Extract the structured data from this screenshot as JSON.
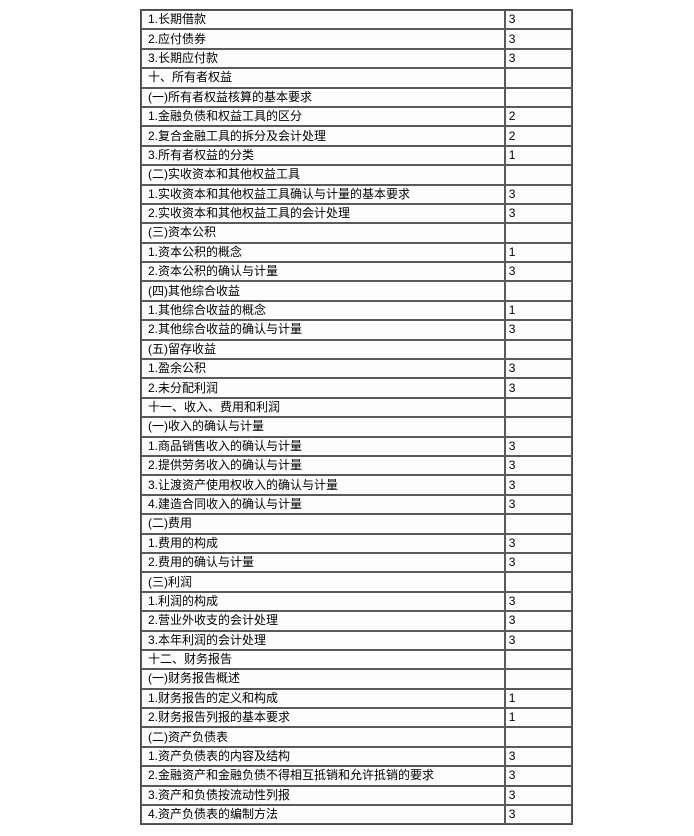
{
  "table": {
    "name": "accounting-syllabus-table",
    "columns": [
      {
        "key": "text",
        "label": ""
      },
      {
        "key": "value",
        "label": ""
      }
    ]
  },
  "colors": {
    "page_background": "#ffffff",
    "cell_background": "#fdfdfd",
    "border": "#5a5a5a",
    "text": "#000000"
  },
  "rows": [
    {
      "type": "item",
      "text": "1.长期借款",
      "value": "3"
    },
    {
      "type": "item",
      "text": "2.应付债券",
      "value": "3"
    },
    {
      "type": "item",
      "text": "3.长期应付款",
      "value": "3"
    },
    {
      "type": "chapter",
      "text": "十、所有者权益",
      "value": ""
    },
    {
      "type": "section",
      "text": "(一)所有者权益核算的基本要求",
      "value": ""
    },
    {
      "type": "item",
      "text": "1.金融负债和权益工具的区分",
      "value": "2"
    },
    {
      "type": "item",
      "text": "2.复合金融工具的拆分及会计处理",
      "value": "2"
    },
    {
      "type": "item",
      "text": "3.所有者权益的分类",
      "value": "1"
    },
    {
      "type": "section",
      "text": "(二)实收资本和其他权益工具",
      "value": ""
    },
    {
      "type": "item",
      "text": "1.实收资本和其他权益工具确认与计量的基本要求",
      "value": "3"
    },
    {
      "type": "item",
      "text": "2.实收资本和其他权益工具的会计处理",
      "value": "3"
    },
    {
      "type": "section",
      "text": "(三)资本公积",
      "value": ""
    },
    {
      "type": "item",
      "text": "1.资本公积的概念",
      "value": "1"
    },
    {
      "type": "item",
      "text": "2.资本公积的确认与计量",
      "value": "3"
    },
    {
      "type": "section",
      "text": "(四)其他综合收益",
      "value": ""
    },
    {
      "type": "item",
      "text": "1.其他综合收益的概念",
      "value": "1"
    },
    {
      "type": "item",
      "text": "2.其他综合收益的确认与计量",
      "value": "3"
    },
    {
      "type": "section",
      "text": "(五)留存收益",
      "value": ""
    },
    {
      "type": "item",
      "text": "1.盈余公积",
      "value": "3"
    },
    {
      "type": "item",
      "text": "2.未分配利润",
      "value": "3"
    },
    {
      "type": "chapter",
      "text": "十一、收入、费用和利润",
      "value": ""
    },
    {
      "type": "section",
      "text": "(一)收入的确认与计量",
      "value": ""
    },
    {
      "type": "item",
      "text": "1.商品销售收入的确认与计量",
      "value": "3"
    },
    {
      "type": "item",
      "text": "2.提供劳务收入的确认与计量",
      "value": "3"
    },
    {
      "type": "item",
      "text": "3.让渡资产使用权收入的确认与计量",
      "value": "3"
    },
    {
      "type": "item",
      "text": "4.建造合同收入的确认与计量",
      "value": "3"
    },
    {
      "type": "section",
      "text": "(二)费用",
      "value": ""
    },
    {
      "type": "item",
      "text": "1.费用的构成",
      "value": "3"
    },
    {
      "type": "item",
      "text": "2.费用的确认与计量",
      "value": "3"
    },
    {
      "type": "section",
      "text": "(三)利润",
      "value": ""
    },
    {
      "type": "item",
      "text": "1.利润的构成",
      "value": "3"
    },
    {
      "type": "item",
      "text": "2.营业外收支的会计处理",
      "value": "3"
    },
    {
      "type": "item",
      "text": "3.本年利润的会计处理",
      "value": "3"
    },
    {
      "type": "chapter",
      "text": "十二、财务报告",
      "value": ""
    },
    {
      "type": "section",
      "text": "(一)财务报告概述",
      "value": ""
    },
    {
      "type": "item",
      "text": "1.财务报告的定义和构成",
      "value": "1"
    },
    {
      "type": "item",
      "text": "2.财务报告列报的基本要求",
      "value": "1"
    },
    {
      "type": "section",
      "text": "(二)资产负债表",
      "value": ""
    },
    {
      "type": "item",
      "text": "1.资产负债表的内容及结构",
      "value": "3"
    },
    {
      "type": "item",
      "text": "2.金融资产和金融负债不得相互抵销和允许抵销的要求",
      "value": "3"
    },
    {
      "type": "item",
      "text": "3.资产和负债按流动性列报",
      "value": "3"
    },
    {
      "type": "item",
      "text": "4.资产负债表的编制方法",
      "value": "3"
    }
  ]
}
